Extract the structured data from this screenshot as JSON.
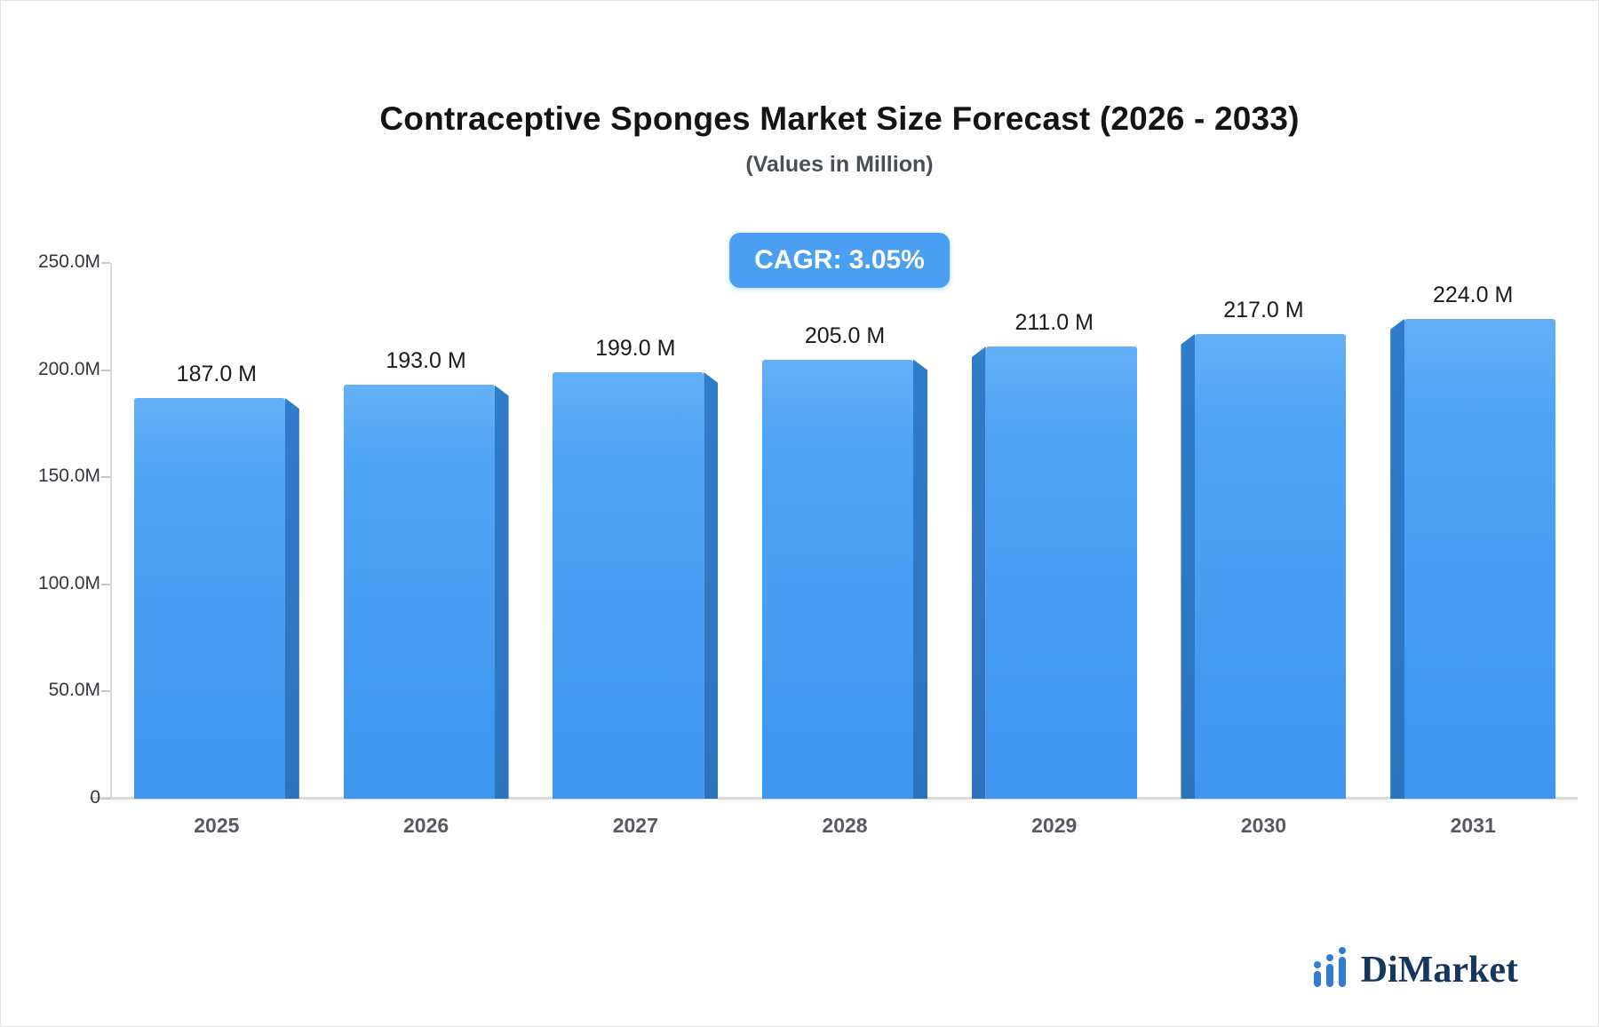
{
  "header": {
    "title": "Contraceptive Sponges Market Size Forecast (2026 - 2033)",
    "subtitle": "(Values in Million)"
  },
  "badge": {
    "label": "CAGR: 3.05%",
    "background": "#4b9ff3",
    "text_color": "#ffffff"
  },
  "chart_data": {
    "type": "bar",
    "title": "Contraceptive Sponges Market Size Forecast (2026 - 2033)",
    "subtitle": "(Values in Million)",
    "unit": "Million",
    "cagr": "3.05%",
    "categories": [
      "2025",
      "2026",
      "2027",
      "2028",
      "2029",
      "2030",
      "2031"
    ],
    "values": [
      187.0,
      193.0,
      199.0,
      205.0,
      211.0,
      217.0,
      224.0
    ],
    "value_labels": [
      "187.0 M",
      "193.0 M",
      "199.0 M",
      "205.0 M",
      "211.0 M",
      "217.0 M",
      "224.0 M"
    ],
    "ylim": [
      0,
      250
    ],
    "yticks": [
      {
        "value": 0,
        "label": "0"
      },
      {
        "value": 50,
        "label": "50.0M"
      },
      {
        "value": 100,
        "label": "100.0M"
      },
      {
        "value": 150,
        "label": "150.0M"
      },
      {
        "value": 200,
        "label": "200.0M"
      },
      {
        "value": 250,
        "label": "250.0M"
      }
    ],
    "grid": false,
    "legend_position": "none",
    "bar_color_top": "#64b0f6",
    "bar_color_bottom": "#3e96f1",
    "bar_side_color": "#2c73bd",
    "axis_color": "#d9d9d9"
  },
  "logo": {
    "text": "DiMarket",
    "icon": "bar-chart-icon",
    "icon_color": "#2f7cd6",
    "text_color": "#15365e"
  }
}
